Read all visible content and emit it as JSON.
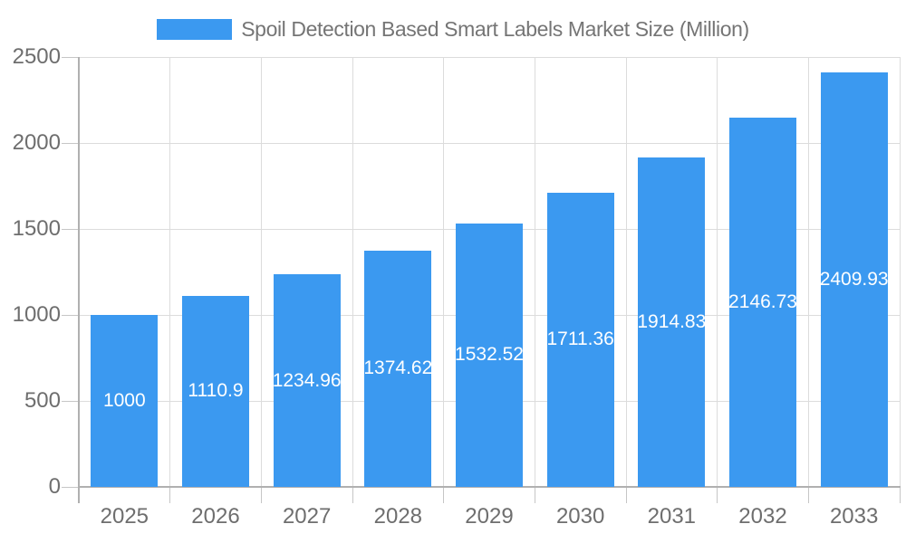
{
  "page": {
    "background_color": "#ffffff"
  },
  "legend": {
    "label": "Spoil Detection Based Smart Labels Market Size (Million)",
    "swatch_color": "#3b99f0",
    "position": "top-center"
  },
  "chart_data": {
    "type": "bar",
    "title": "Spoil Detection Based Smart Labels Market Size (Million)",
    "categories": [
      "2025",
      "2026",
      "2027",
      "2028",
      "2029",
      "2030",
      "2031",
      "2032",
      "2033"
    ],
    "series": [
      {
        "name": "Spoil Detection Based Smart Labels Market Size (Million)",
        "values": [
          1000,
          1110.9,
          1234.96,
          1374.62,
          1532.52,
          1711.36,
          1914.83,
          2146.73,
          2409.93
        ]
      }
    ],
    "value_labels": [
      "1000",
      "1110.9",
      "1234.96",
      "1374.62",
      "1532.52",
      "1711.36",
      "1914.83",
      "2146.73",
      "2409.93"
    ],
    "xlabel": "",
    "ylabel": "",
    "ylim": [
      0,
      2500
    ],
    "ytick_values": [
      0,
      500,
      1000,
      1500,
      2000,
      2500
    ],
    "ytick_labels": [
      "0",
      "500",
      "1000",
      "1500",
      "2000",
      "2500"
    ],
    "grid": true,
    "legend_position": "top",
    "colors": {
      "bar": "#3b99f0",
      "bar_value_text": "#ffffff",
      "gridline": "#dcdcdc",
      "axis_line": "#b0b0b0",
      "tick_mark": "#c6c6c6",
      "tick_label_text": "#6e6e6e",
      "legend_text": "#757575"
    }
  }
}
